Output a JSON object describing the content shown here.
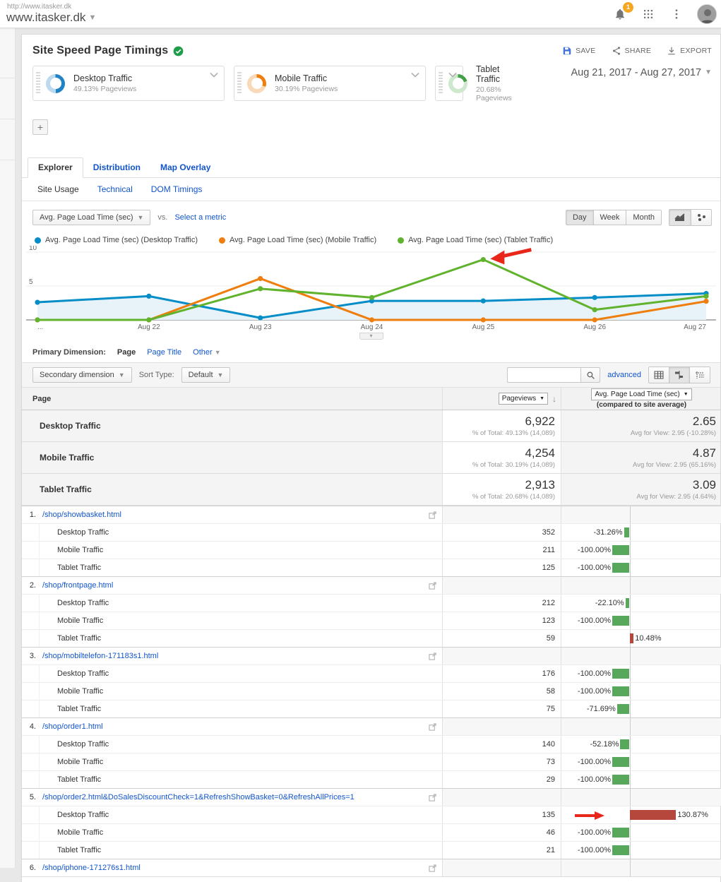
{
  "topbar": {
    "url_small": "http://www.itasker.dk",
    "account": "www.itasker.dk",
    "notification_count": "1"
  },
  "header": {
    "title": "Site Speed Page Timings",
    "save_label": "SAVE",
    "share_label": "SHARE",
    "export_label": "EXPORT",
    "date_range": "Aug 21, 2017 - Aug 27, 2017"
  },
  "segments": [
    {
      "name": "Desktop Traffic",
      "sub": "49.13% Pageviews",
      "pct": 49.13,
      "color": "#2083c6",
      "tint": "#bcd9ee"
    },
    {
      "name": "Mobile Traffic",
      "sub": "30.19% Pageviews",
      "pct": 30.19,
      "color": "#ee7e0e",
      "tint": "#f8d9b8"
    },
    {
      "name": "Tablet Traffic",
      "sub": "20.68% Pageviews",
      "pct": 20.68,
      "color": "#43a047",
      "tint": "#cde8cd"
    }
  ],
  "add_segment_label": "+",
  "tabs": [
    {
      "label": "Explorer",
      "active": true
    },
    {
      "label": "Distribution",
      "active": false
    },
    {
      "label": "Map Overlay",
      "active": false
    }
  ],
  "subtabs": [
    {
      "label": "Site Usage",
      "active": true
    },
    {
      "label": "Technical",
      "active": false
    },
    {
      "label": "DOM Timings",
      "active": false
    }
  ],
  "metric_bar": {
    "metric_dropdown": "Avg. Page Load Time (sec)",
    "vs_label": "vs.",
    "select_metric_label": "Select a metric",
    "granularity": [
      {
        "label": "Day",
        "active": true
      },
      {
        "label": "Week",
        "active": false
      },
      {
        "label": "Month",
        "active": false
      }
    ]
  },
  "chart_data": {
    "type": "line",
    "x": [
      "...",
      "Aug 22",
      "Aug 23",
      "Aug 24",
      "Aug 25",
      "Aug 26",
      "Aug 27"
    ],
    "ylim": [
      0,
      10
    ],
    "yticks": [
      5,
      10
    ],
    "grid": true,
    "legend_position": "top",
    "series": [
      {
        "name": "Avg. Page Load Time (sec) (Desktop Traffic)",
        "color": "#058dc7",
        "fill": "#e7f2f9",
        "values": [
          2.6,
          3.5,
          0.3,
          2.8,
          2.8,
          3.3,
          3.9
        ]
      },
      {
        "name": "Avg. Page Load Time (sec) (Mobile Traffic)",
        "color": "#ee7e0e",
        "fill": null,
        "values": [
          0,
          0,
          6.1,
          0,
          0,
          0,
          2.75
        ]
      },
      {
        "name": "Avg. Page Load Time (sec) (Tablet Traffic)",
        "color": "#61b32e",
        "fill": null,
        "values": [
          0,
          0,
          4.6,
          3.3,
          8.9,
          1.5,
          3.5
        ]
      }
    ],
    "annotation": {
      "type": "red-arrow",
      "series": "Tablet Traffic",
      "x": "Aug 25",
      "value": 8.9
    }
  },
  "primary_dimension": {
    "label": "Primary Dimension:",
    "options": [
      {
        "label": "Page",
        "active": true,
        "dropdown": false
      },
      {
        "label": "Page Title",
        "active": false,
        "dropdown": false
      },
      {
        "label": "Other",
        "active": false,
        "dropdown": true
      }
    ]
  },
  "table_controls": {
    "secondary_dimension_label": "Secondary dimension",
    "sort_type_label": "Sort Type:",
    "sort_type_value": "Default",
    "search_placeholder": "",
    "advanced_label": "advanced"
  },
  "table": {
    "col_page": "Page",
    "col_pageviews": "Pageviews",
    "col_metric": "Avg. Page Load Time (sec)",
    "col_metric_sub": "(compared to site average)",
    "summary_rows": [
      {
        "name": "Desktop Traffic",
        "pageviews": "6,922",
        "pv_sub": "% of Total: 49.13% (14,089)",
        "metric": "2.65",
        "metric_sub": "Avg for View: 2.95 (-10.28%)"
      },
      {
        "name": "Mobile Traffic",
        "pageviews": "4,254",
        "pv_sub": "% of Total: 30.19% (14,089)",
        "metric": "4.87",
        "metric_sub": "Avg for View: 2.95 (65.16%)"
      },
      {
        "name": "Tablet Traffic",
        "pageviews": "2,913",
        "pv_sub": "% of Total: 20.68% (14,089)",
        "metric": "3.09",
        "metric_sub": "Avg for View: 2.95 (4.64%)"
      }
    ],
    "groups": [
      {
        "index": "1.",
        "page": "/shop/showbasket.html",
        "rows": [
          {
            "name": "Desktop Traffic",
            "pageviews": "352",
            "pct": -31.26,
            "label": "-31.26%"
          },
          {
            "name": "Mobile Traffic",
            "pageviews": "211",
            "pct": -100,
            "label": "-100.00%"
          },
          {
            "name": "Tablet Traffic",
            "pageviews": "125",
            "pct": -100,
            "label": "-100.00%"
          }
        ]
      },
      {
        "index": "2.",
        "page": "/shop/frontpage.html",
        "rows": [
          {
            "name": "Desktop Traffic",
            "pageviews": "212",
            "pct": -22.1,
            "label": "-22.10%"
          },
          {
            "name": "Mobile Traffic",
            "pageviews": "123",
            "pct": -100,
            "label": "-100.00%"
          },
          {
            "name": "Tablet Traffic",
            "pageviews": "59",
            "pct": 10.48,
            "label": "10.48%"
          }
        ]
      },
      {
        "index": "3.",
        "page": "/shop/mobiltelefon-171183s1.html",
        "rows": [
          {
            "name": "Desktop Traffic",
            "pageviews": "176",
            "pct": -100,
            "label": "-100.00%"
          },
          {
            "name": "Mobile Traffic",
            "pageviews": "58",
            "pct": -100,
            "label": "-100.00%"
          },
          {
            "name": "Tablet Traffic",
            "pageviews": "75",
            "pct": -71.69,
            "label": "-71.69%"
          }
        ]
      },
      {
        "index": "4.",
        "page": "/shop/order1.html",
        "rows": [
          {
            "name": "Desktop Traffic",
            "pageviews": "140",
            "pct": -52.18,
            "label": "-52.18%"
          },
          {
            "name": "Mobile Traffic",
            "pageviews": "73",
            "pct": -100,
            "label": "-100.00%"
          },
          {
            "name": "Tablet Traffic",
            "pageviews": "29",
            "pct": -100,
            "label": "-100.00%"
          }
        ]
      },
      {
        "index": "5.",
        "page": "/shop/order2.html&DoSalesDiscountCheck=1&RefreshShowBasket=0&RefreshAllPrices=1",
        "rows": [
          {
            "name": "Desktop Traffic",
            "pageviews": "135",
            "pct": 130.87,
            "label": "130.87%",
            "arrow": true
          },
          {
            "name": "Mobile Traffic",
            "pageviews": "46",
            "pct": -100,
            "label": "-100.00%"
          },
          {
            "name": "Tablet Traffic",
            "pageviews": "21",
            "pct": -100,
            "label": "-100.00%"
          }
        ]
      },
      {
        "index": "6.",
        "page": "/shop/iphone-171276s1.html",
        "rows": []
      }
    ]
  },
  "colors": {
    "link_blue": "#1155cc",
    "bar_green": "#58a85c",
    "bar_red": "#b5473d",
    "annotation_red": "#e8261a",
    "badge_amber": "#f5a623"
  }
}
